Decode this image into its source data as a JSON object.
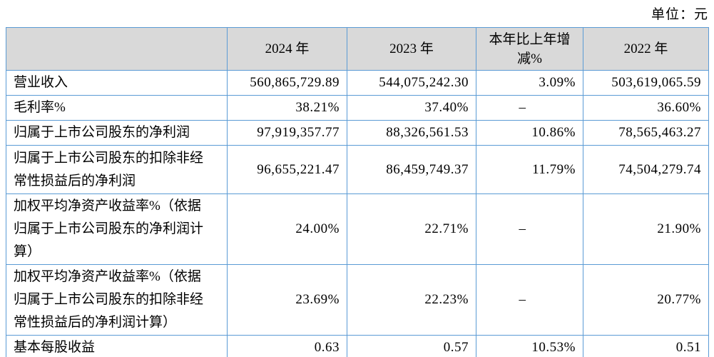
{
  "unit_label": "单位：元",
  "colors": {
    "table_border": "#5b9bd5",
    "header_bg": "#d9d9d9",
    "text": "#000000"
  },
  "table": {
    "headers": [
      "",
      "2024 年",
      "2023 年",
      "本年比上年增减%",
      "2022 年"
    ],
    "rows": [
      {
        "label": "营业收入",
        "v2024": "560,865,729.89",
        "v2023": "544,075,242.30",
        "change": "3.09%",
        "v2022": "503,619,065.59"
      },
      {
        "label": "毛利率%",
        "v2024": "38.21%",
        "v2023": "37.40%",
        "change": "–",
        "v2022": "36.60%"
      },
      {
        "label": "归属于上市公司股东的净利润",
        "v2024": "97,919,357.77",
        "v2023": "88,326,561.53",
        "change": "10.86%",
        "v2022": "78,565,463.27"
      },
      {
        "label": "归属于上市公司股东的扣除非经常性损益后的净利润",
        "v2024": "96,655,221.47",
        "v2023": "86,459,749.37",
        "change": "11.79%",
        "v2022": "74,504,279.74"
      },
      {
        "label": "加权平均净资产收益率%（依据归属于上市公司股东的净利润计算）",
        "v2024": "24.00%",
        "v2023": "22.71%",
        "change": "–",
        "v2022": "21.90%"
      },
      {
        "label": "加权平均净资产收益率%（依据归属于上市公司股东的扣除非经常性损益后的净利润计算）",
        "v2024": "23.69%",
        "v2023": "22.23%",
        "change": "–",
        "v2022": "20.77%"
      },
      {
        "label": "基本每股收益",
        "v2024": "0.63",
        "v2023": "0.57",
        "change": "10.53%",
        "v2022": "0.51"
      }
    ]
  }
}
